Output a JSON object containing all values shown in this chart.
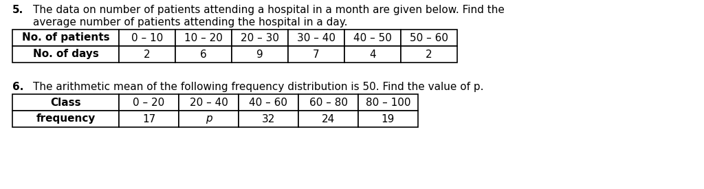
{
  "q5_num": "5.",
  "q5_text_line1": "The data on number of patients attending a hospital in a month are given below. Find the",
  "q5_text_line2": "average number of patients attending the hospital in a day.",
  "q5_table_headers": [
    "No. of patients",
    "0 – 10",
    "10 – 20",
    "20 – 30",
    "30 – 40",
    "40 – 50",
    "50 – 60"
  ],
  "q5_table_row": [
    "No. of days",
    "2",
    "6",
    "9",
    "7",
    "4",
    "2"
  ],
  "q6_num": "6.",
  "q6_text": "The arithmetic mean of the following frequency distribution is 50. Find the value of p.",
  "q6_table_headers": [
    "Class",
    "0 – 20",
    "20 – 40",
    "40 – 60",
    "60 – 80",
    "80 – 100"
  ],
  "q6_table_row": [
    "frequency",
    "17",
    "p",
    "32",
    "24",
    "19"
  ],
  "bg_color": "#ffffff",
  "text_color": "#000000",
  "font_size_text": 11.0,
  "font_size_table": 11.0
}
